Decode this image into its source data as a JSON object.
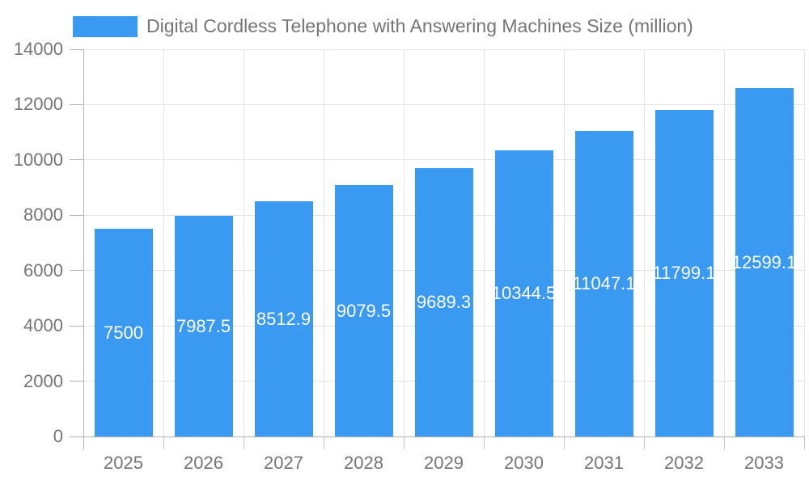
{
  "legend": {
    "label": "Digital Cordless Telephone with Answering Machines Size (million)"
  },
  "colors": {
    "bar": "#3A99F0",
    "bar_label_text": "#ffffff",
    "axis_text": "#757575",
    "gridline": "#e4e4e4",
    "axis_line": "#b2b2b2"
  },
  "chart_data": {
    "type": "bar",
    "title": "Digital Cordless Telephone with Answering Machines Size (million)",
    "categories": [
      "2025",
      "2026",
      "2027",
      "2028",
      "2029",
      "2030",
      "2031",
      "2032",
      "2033"
    ],
    "values": [
      7500,
      7987.5,
      8512.9,
      9079.5,
      9689.3,
      10344.5,
      11047.1,
      11799.1,
      12599.1
    ],
    "bar_labels": [
      "7500",
      "7987.5",
      "8512.9",
      "9079.5",
      "9689.3",
      "10344.5",
      "11047.1",
      "11799.1",
      "12599.1"
    ],
    "xlabel": "",
    "ylabel": "",
    "ylim": [
      0,
      14000
    ],
    "yticks": [
      0,
      2000,
      4000,
      6000,
      8000,
      10000,
      12000,
      14000
    ],
    "grid": true,
    "legend_position": "top-left",
    "bar_color": "#3A99F0",
    "value_label_position": "center-inside"
  }
}
